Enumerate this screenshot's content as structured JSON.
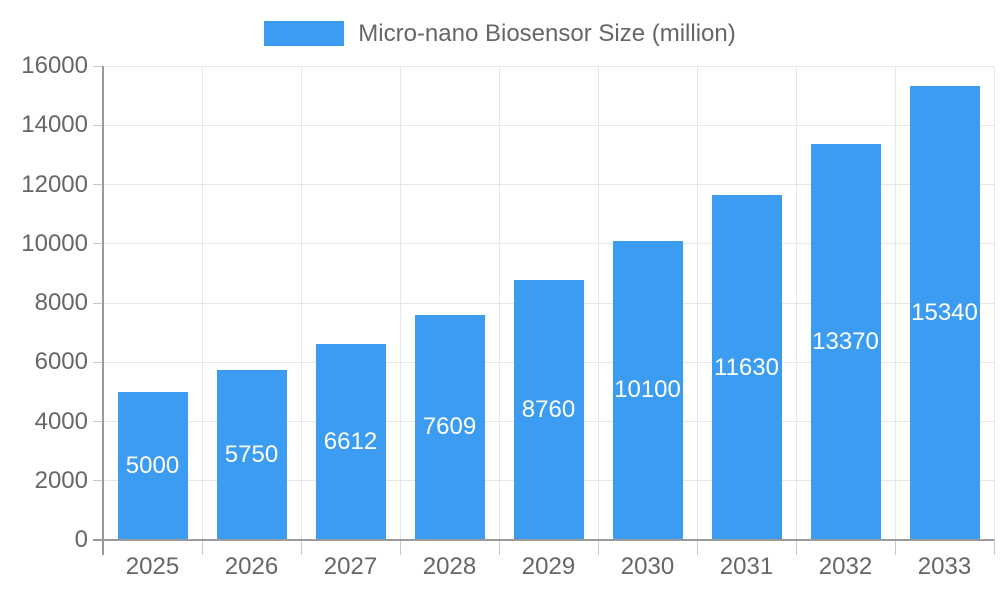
{
  "legend": {
    "label": "Micro-nano Biosensor Size (million)"
  },
  "colors": {
    "bar": "#3b9cf2",
    "grid": "#e6e6e6",
    "axis": "#9a9a9a",
    "tick": "#c9c9c9",
    "axis_text": "#666666",
    "legend_text": "#666666",
    "bar_label_text": "#ffffff",
    "background": "#ffffff"
  },
  "chart_data": {
    "type": "bar",
    "title": "Micro-nano Biosensor Size (million)",
    "categories": [
      "2025",
      "2026",
      "2027",
      "2028",
      "2029",
      "2030",
      "2031",
      "2032",
      "2033"
    ],
    "values": [
      5000,
      5750,
      6612,
      7609,
      8760,
      10100,
      11630,
      13370,
      15340
    ],
    "series_name": "Micro-nano Biosensor Size (million)",
    "xlabel": "",
    "ylabel": "",
    "ylim": [
      0,
      16000
    ],
    "ytick_step": 2000,
    "yticks": [
      0,
      2000,
      4000,
      6000,
      8000,
      10000,
      12000,
      14000,
      16000
    ],
    "grid": true,
    "legend_position": "top",
    "value_labels": "inside-center"
  }
}
